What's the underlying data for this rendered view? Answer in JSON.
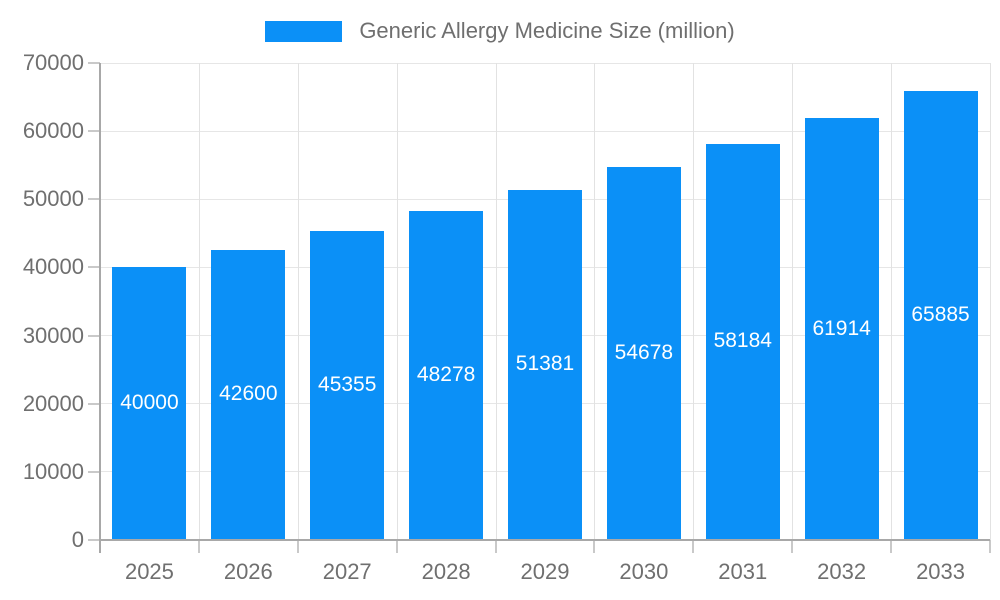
{
  "legend": {
    "items": [
      {
        "label": "Generic Allergy Medicine Size (million)",
        "color": "#0b90f7"
      }
    ]
  },
  "chart_data": {
    "type": "bar",
    "title": "Generic Allergy Medicine Size (million)",
    "categories": [
      "2025",
      "2026",
      "2027",
      "2028",
      "2029",
      "2030",
      "2031",
      "2032",
      "2033"
    ],
    "values": [
      40000,
      42600,
      45355,
      48278,
      51381,
      54678,
      58184,
      61914,
      65885
    ],
    "value_labels": [
      "40000",
      "42600",
      "45355",
      "48278",
      "51381",
      "54678",
      "58184",
      "61914",
      "65885"
    ],
    "xlabel": "",
    "ylabel": "",
    "ylim": [
      0,
      70000
    ],
    "ytick_step": 10000,
    "ytick_labels": [
      "0",
      "10000",
      "20000",
      "30000",
      "40000",
      "50000",
      "60000",
      "70000"
    ],
    "grid": true,
    "legend_position": "top-center",
    "value_label_position": "center-inside"
  },
  "colors": {
    "bar": "#0b90f7",
    "grid": "#e6e6e6",
    "axis": "#a8a8a8",
    "tick": "#c9c9c9",
    "text": "#6f6f6f",
    "value_text": "#ffffff",
    "background": "#ffffff"
  }
}
